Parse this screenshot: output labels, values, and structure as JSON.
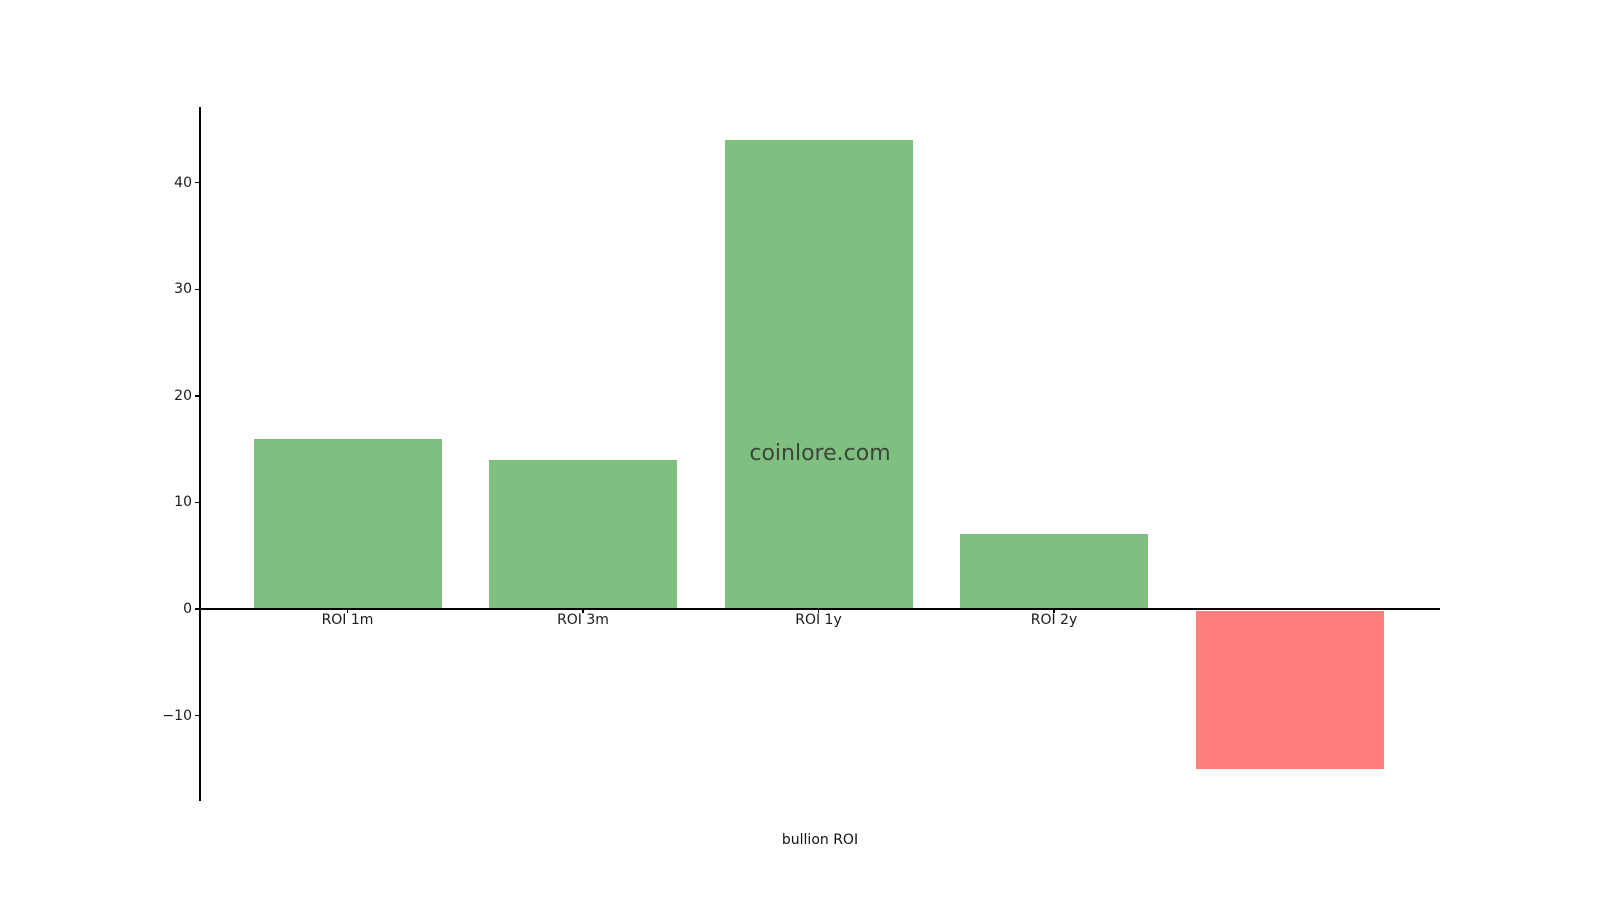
{
  "chart_data": {
    "type": "bar",
    "title": "bullion ROI",
    "watermark": "coinlore.com",
    "categories": [
      "ROI 1m",
      "ROI 3m",
      "ROI 1y",
      "ROI 2y",
      ""
    ],
    "values": [
      16,
      14,
      44,
      7,
      -15
    ],
    "series": [
      {
        "name": "bullion ROI",
        "values": [
          16,
          14,
          44,
          7,
          -15
        ]
      }
    ],
    "yticks": [
      {
        "value": 40,
        "label": "40"
      },
      {
        "value": 30,
        "label": "30"
      },
      {
        "value": 20,
        "label": "20"
      },
      {
        "value": 10,
        "label": "10"
      },
      {
        "value": 0,
        "label": "0"
      },
      {
        "value": -10,
        "label": "−10"
      }
    ],
    "ylim": [
      -18,
      47
    ],
    "xlabel": "bullion ROI",
    "ylabel": "",
    "grid": false,
    "legend": "none",
    "colors": {
      "positive_bar": "#7fbf7f",
      "negative_bar": "#ff7f7f",
      "axis": "#000000",
      "tick_label": "#1a1a1a",
      "watermark": "#282828",
      "title": "#111111"
    }
  }
}
